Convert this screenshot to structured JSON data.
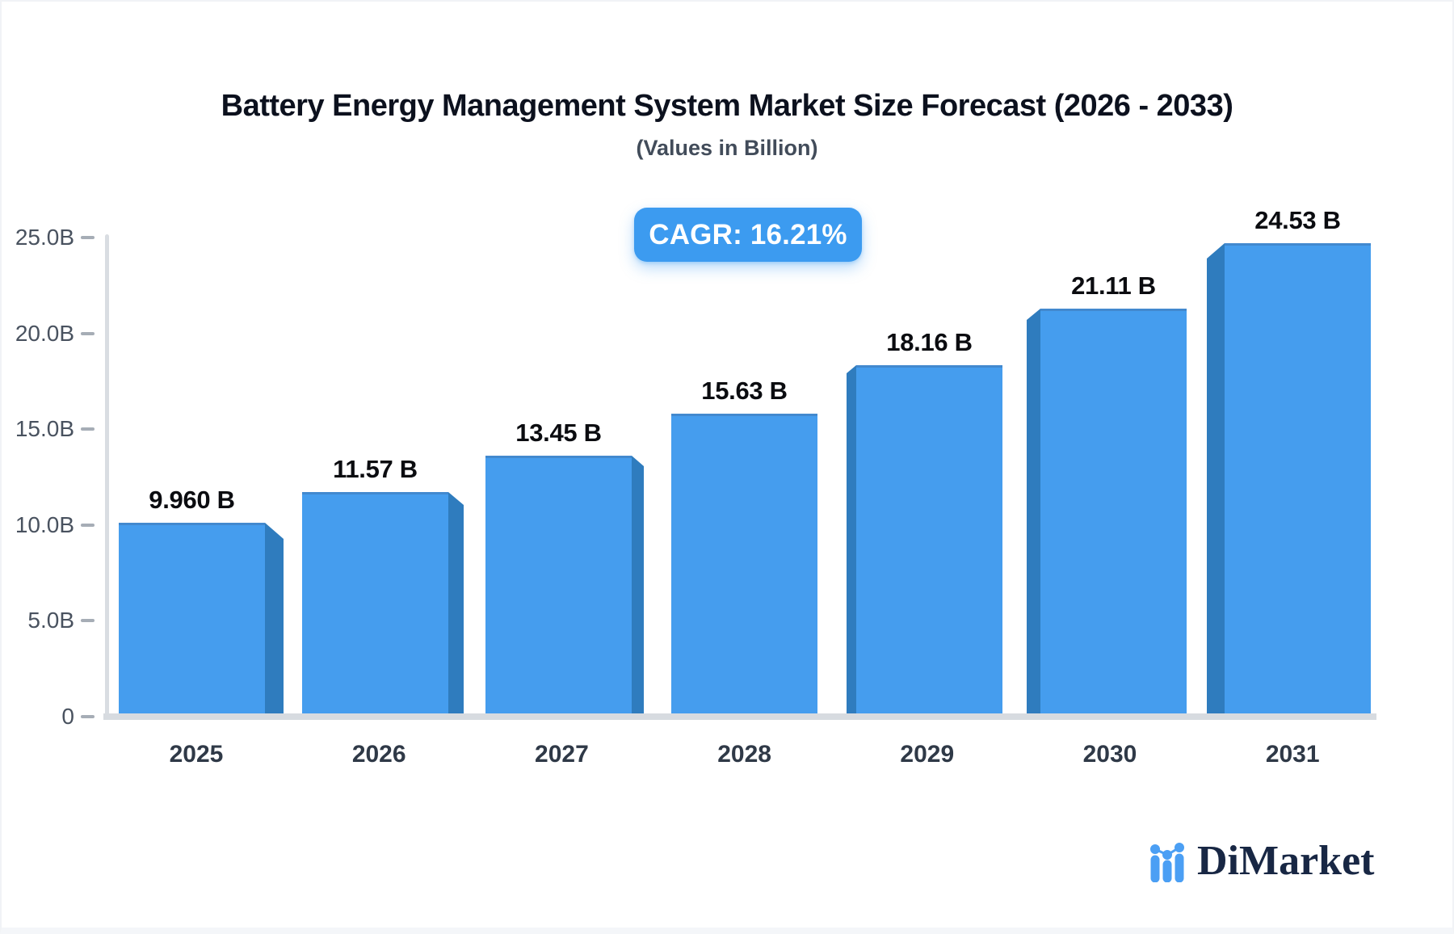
{
  "brand": {
    "name": "DiMarket",
    "icon": "dimarket-bars-sparkline-icon",
    "icon_color": "#4b9ff4",
    "text_color": "#182744"
  },
  "badge": {
    "background_color": "#3c9bf0",
    "text_color": "#ffffff"
  },
  "chart_data": {
    "type": "bar",
    "title": "Battery Energy Management System Market Size Forecast (2026 - 2033)",
    "subtitle": "(Values in Billion)",
    "annotation": "CAGR: 16.21%",
    "categories": [
      "2025",
      "2026",
      "2027",
      "2028",
      "2029",
      "2030",
      "2031"
    ],
    "values": [
      9.96,
      11.57,
      13.45,
      15.63,
      18.16,
      21.11,
      24.53
    ],
    "value_labels": [
      "9.960 B",
      "11.57 B",
      "13.45 B",
      "15.63 B",
      "18.16 B",
      "21.11 B",
      "24.53 B"
    ],
    "xlabel": "",
    "ylabel": "",
    "ylim": [
      0,
      25
    ],
    "yticks": [
      {
        "label": "25.0B",
        "value": 25
      },
      {
        "label": "20.0B",
        "value": 20
      },
      {
        "label": "15.0B",
        "value": 15
      },
      {
        "label": "10.0B",
        "value": 10
      },
      {
        "label": "5.0B",
        "value": 5
      },
      {
        "label": "0",
        "value": 0
      }
    ],
    "grid": false,
    "legend": false,
    "bar_color_top": "#60acf1",
    "bar_color_bottom": "#3e97ec",
    "bar_side_color": "#2f7cbe",
    "axis_color": "#d9dde2",
    "tick_color": "#a6adb6"
  }
}
